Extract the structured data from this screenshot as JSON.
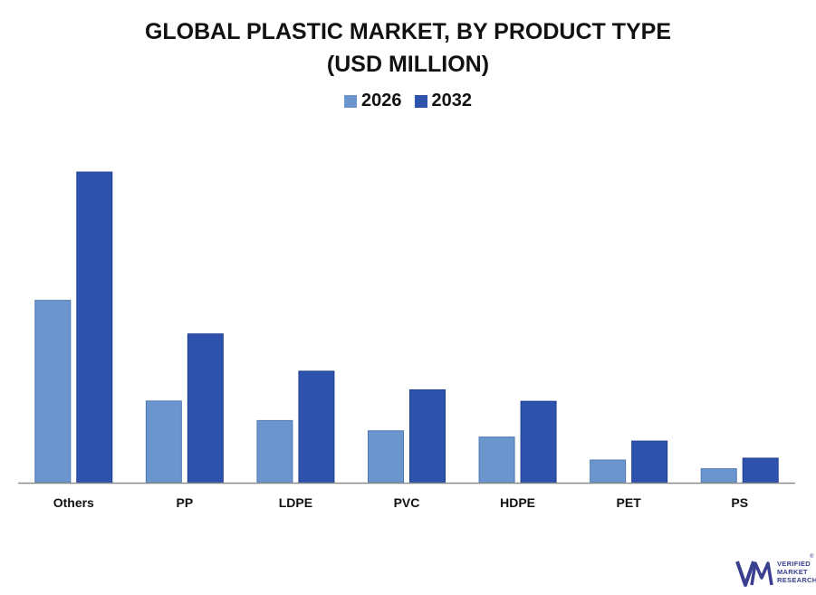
{
  "chart_data": {
    "type": "bar",
    "title_line1": "GLOBAL PLASTIC MARKET, BY PRODUCT TYPE",
    "title_line2": "(USD MILLION)",
    "categories": [
      "Others",
      "PP",
      "LDPE",
      "PVC",
      "HDPE",
      "PET",
      "PS"
    ],
    "series": [
      {
        "name": "2026",
        "color": "#6b96cd",
        "values": [
          58.7,
          26.3,
          20.0,
          16.7,
          14.7,
          7.3,
          4.5
        ]
      },
      {
        "name": "2032",
        "color": "#2e53ad",
        "values": [
          100,
          47.9,
          35.9,
          29.9,
          26.2,
          13.4,
          7.9
        ]
      }
    ],
    "ylim": [
      0,
      100
    ],
    "grid": false,
    "legend_position": "top-center"
  },
  "logo": {
    "line1": "VERIFIED",
    "line2": "MARKET",
    "line3": "RESEARCH",
    "reg": "®",
    "color": "#3a3f8f"
  }
}
